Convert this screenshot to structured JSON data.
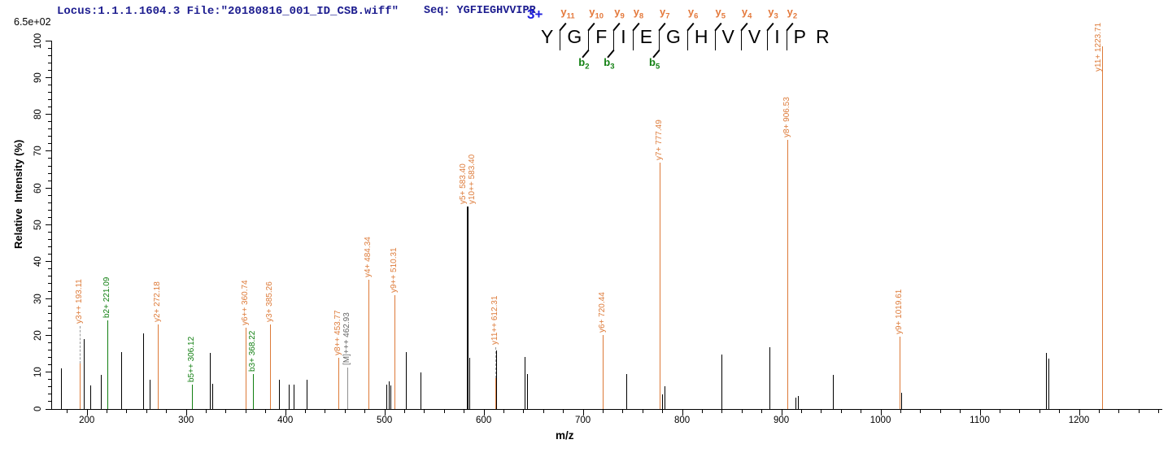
{
  "header": {
    "locus_file": "Locus:1.1.1.1604.3 File:\"20180816_001_ID_CSB.wiff\"",
    "seq": "Seq: YGFIEGHVVIPR",
    "charge": "3+",
    "intensity_scale": "6.5e+02"
  },
  "sequence": {
    "residues": [
      "Y",
      "G",
      "F",
      "I",
      "E",
      "G",
      "H",
      "V",
      "V",
      "I",
      "P",
      "R"
    ],
    "gaps": [
      {
        "divider": true,
        "y": "11"
      },
      {
        "divider": true,
        "y": "10",
        "b": "2"
      },
      {
        "divider": true,
        "y": "9",
        "b": "3"
      },
      {
        "divider": true,
        "y": "8"
      },
      {
        "divider": true,
        "y": "7",
        "b": "5"
      },
      {
        "divider": true,
        "y": "6"
      },
      {
        "divider": true,
        "y": "5"
      },
      {
        "divider": true,
        "y": "4"
      },
      {
        "divider": true,
        "y": "3"
      },
      {
        "divider": true,
        "y": "2"
      },
      {
        "divider": false
      }
    ]
  },
  "chart_data": {
    "type": "bar",
    "title": "",
    "xlabel": "m/z",
    "ylabel": "Relative  Intensity (%)",
    "xlim": [
      165,
      1284
    ],
    "ylim": [
      0,
      100
    ],
    "x_major_tick": 100,
    "x_minor_tick": 20,
    "y_major_tick": 10,
    "y_minor_tick": 2,
    "annotated_peaks": [
      {
        "ion": "y3++",
        "mz": 193.11,
        "pct": 12.4,
        "series": "y",
        "label": "y3++ 193.11",
        "label_at_pct": 22.5
      },
      {
        "ion": "b2+",
        "mz": 221.09,
        "pct": 24,
        "series": "b",
        "label": "b2+ 221.09"
      },
      {
        "ion": "y2+",
        "mz": 272.18,
        "pct": 23,
        "series": "y",
        "label": "y2+ 272.18"
      },
      {
        "ion": "b5++",
        "mz": 306.12,
        "pct": 6.6,
        "series": "b",
        "label": "b5++ 306.12"
      },
      {
        "ion": "y6++",
        "mz": 360.74,
        "pct": 22,
        "series": "y",
        "label": "y6++ 360.74"
      },
      {
        "ion": "b3+",
        "mz": 368.22,
        "pct": 9.5,
        "series": "b",
        "label": "b3+ 368.22"
      },
      {
        "ion": "y3+",
        "mz": 385.26,
        "pct": 23,
        "series": "y",
        "label": "y3+ 385.26"
      },
      {
        "ion": "y8++",
        "mz": 453.77,
        "pct": 14,
        "series": "y",
        "label": "y8++ 453.77"
      },
      {
        "ion": "[M]+++",
        "mz": 462.93,
        "pct": 11.3,
        "series": "precursor",
        "label": "[M]+++ 462.93"
      },
      {
        "ion": "y4+",
        "mz": 484.34,
        "pct": 35,
        "series": "y",
        "label": "y4+ 484.34"
      },
      {
        "ion": "y9++",
        "mz": 510.31,
        "pct": 31,
        "series": "y",
        "label": "y9++ 510.31"
      },
      {
        "ion": "y5+ / y10++",
        "mz": 583.4,
        "pct": 55,
        "series": "black2",
        "label": "y5+ 583.40",
        "label2": "y10++ 583.40",
        "w": 2
      },
      {
        "ion": "y11++",
        "mz": 612.31,
        "pct": 8.5,
        "series": "y",
        "label": "y11++ 612.31",
        "label_at_pct": 16.8
      },
      {
        "ion": "y6+",
        "mz": 720.44,
        "pct": 20,
        "series": "y",
        "label": "y6+ 720.44"
      },
      {
        "ion": "y7+",
        "mz": 777.49,
        "pct": 67,
        "series": "y",
        "label": "y7+ 777.49"
      },
      {
        "ion": "y8+",
        "mz": 906.53,
        "pct": 73,
        "series": "y",
        "label": "y8+ 906.53"
      },
      {
        "ion": "y9+",
        "mz": 1019.61,
        "pct": 19.6,
        "series": "y",
        "label": "y9+ 1019.61"
      },
      {
        "ion": "y11+",
        "mz": 1223.71,
        "pct": 98.5,
        "series": "y",
        "label": "y11+ 1223.71",
        "label_at_pct": 91,
        "label_dx": -4
      }
    ],
    "unannotated_peaks": [
      [
        174.5,
        11
      ],
      [
        197,
        19
      ],
      [
        204,
        6.5
      ],
      [
        214.5,
        9.3
      ],
      [
        235,
        15.5
      ],
      [
        257.3,
        20.5
      ],
      [
        263.5,
        8
      ],
      [
        324.2,
        15.3
      ],
      [
        326.5,
        6.8
      ],
      [
        393.8,
        8
      ],
      [
        404,
        6.6
      ],
      [
        409,
        6.6
      ],
      [
        422,
        7.9
      ],
      [
        502.5,
        6.6
      ],
      [
        504.5,
        7.6
      ],
      [
        506.5,
        6.3
      ],
      [
        521.8,
        15.4
      ],
      [
        537,
        10
      ],
      [
        585.8,
        14
      ],
      [
        612.6,
        15.8
      ],
      [
        642,
        14.2
      ],
      [
        644.5,
        9.5
      ],
      [
        744.5,
        9.5
      ],
      [
        780.4,
        3.9
      ],
      [
        783,
        6.1
      ],
      [
        840.2,
        14.7
      ],
      [
        888.6,
        16.8
      ],
      [
        906.9,
        10.7
      ],
      [
        914.7,
        3
      ],
      [
        917.2,
        3.5
      ],
      [
        952.5,
        9.2
      ],
      [
        1021.5,
        4.4
      ],
      [
        1167,
        15.3
      ],
      [
        1169.5,
        13.6
      ]
    ]
  },
  "colors": {
    "y_ion": "#dd7a38",
    "b_ion": "#117f11",
    "precursor_line": "#909090",
    "precursor_label": "#666666",
    "peak_black": "#000000",
    "header_navy": "#1c1c8f",
    "charge_blue": "#1f1fde",
    "dash_gray": "#9a9a9a"
  }
}
